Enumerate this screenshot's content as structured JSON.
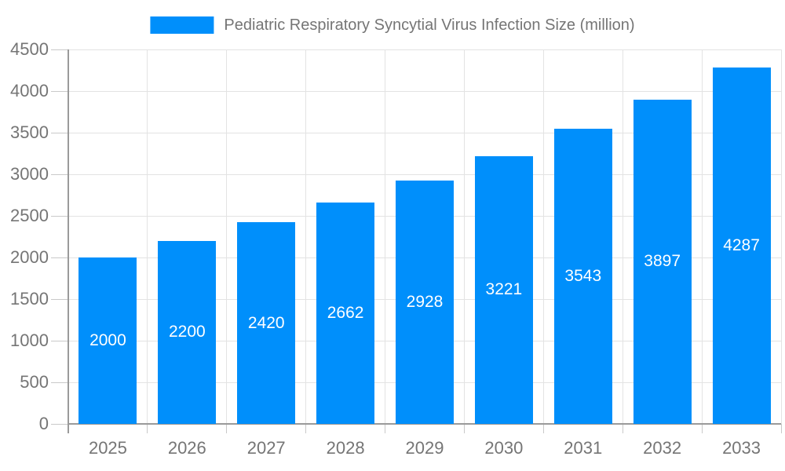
{
  "chart_data": {
    "type": "bar",
    "title": "Pediatric Respiratory Syncytial Virus Infection Size (million)",
    "categories": [
      "2025",
      "2026",
      "2027",
      "2028",
      "2029",
      "2030",
      "2031",
      "2032",
      "2033"
    ],
    "series": [
      {
        "name": "Pediatric Respiratory Syncytial Virus Infection Size (million)",
        "values": [
          2000,
          2200,
          2420,
          2662,
          2928,
          3221,
          3543,
          3897,
          4287
        ]
      }
    ],
    "xlabel": "",
    "ylabel": "",
    "ylim": [
      0,
      4500
    ],
    "y_ticks": [
      0,
      500,
      1000,
      1500,
      2000,
      2500,
      3000,
      3500,
      4000,
      4500
    ],
    "grid": true,
    "legend_position": "top",
    "value_label_position": "inside-center",
    "colors": {
      "bar": "#008FFB",
      "value_label": "#FFFFFF",
      "axis_text": "#757575",
      "title_text": "#757575",
      "gridline": "#E3E3E3",
      "tick": "#C9C9C9",
      "axis_line": "#9A9A9A",
      "background": "#FFFFFF"
    }
  }
}
